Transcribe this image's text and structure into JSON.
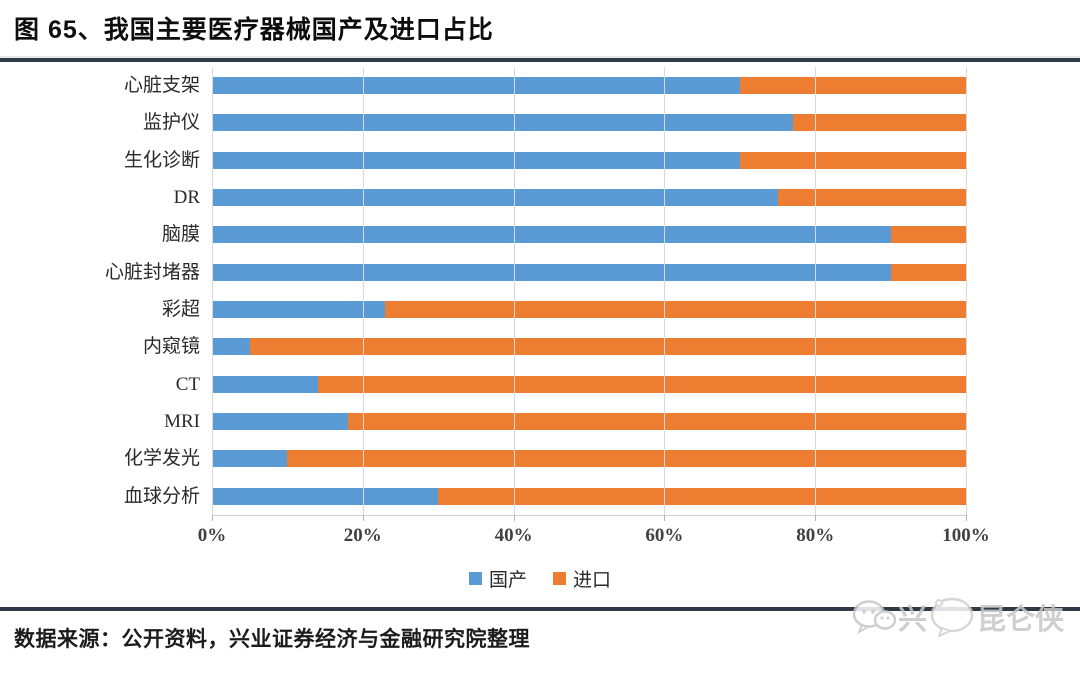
{
  "title": "图 65、我国主要医疗器械国产及进口占比",
  "source": "数据来源：公开资料，兴业证券经济与金融研究院整理",
  "watermark": {
    "prefix": "兴",
    "suffix": "昆仑侠"
  },
  "colors": {
    "domestic": "#5B9BD5",
    "import": "#ED7D31",
    "gridline": "#D9D9D9",
    "rule": "#313B48",
    "axis_text": "#404040"
  },
  "chart_data": {
    "type": "bar",
    "orientation": "horizontal",
    "stacked": true,
    "title": "我国主要医疗器械国产及进口占比",
    "categories": [
      "心脏支架",
      "监护仪",
      "生化诊断",
      "DR",
      "脑膜",
      "心脏封堵器",
      "彩超",
      "内窥镜",
      "CT",
      "MRI",
      "化学发光",
      "血球分析"
    ],
    "series": [
      {
        "name": "国产",
        "color": "#5B9BD5",
        "values": [
          70,
          77,
          70,
          75,
          90,
          90,
          23,
          5,
          14,
          18,
          10,
          30
        ]
      },
      {
        "name": "进口",
        "color": "#ED7D31",
        "values": [
          30,
          23,
          30,
          25,
          10,
          10,
          77,
          95,
          86,
          82,
          90,
          70
        ]
      }
    ],
    "x_ticks": [
      "0%",
      "20%",
      "40%",
      "60%",
      "80%",
      "100%"
    ],
    "xlim": [
      0,
      100
    ],
    "grid": "vertical",
    "legend_position": "bottom"
  }
}
